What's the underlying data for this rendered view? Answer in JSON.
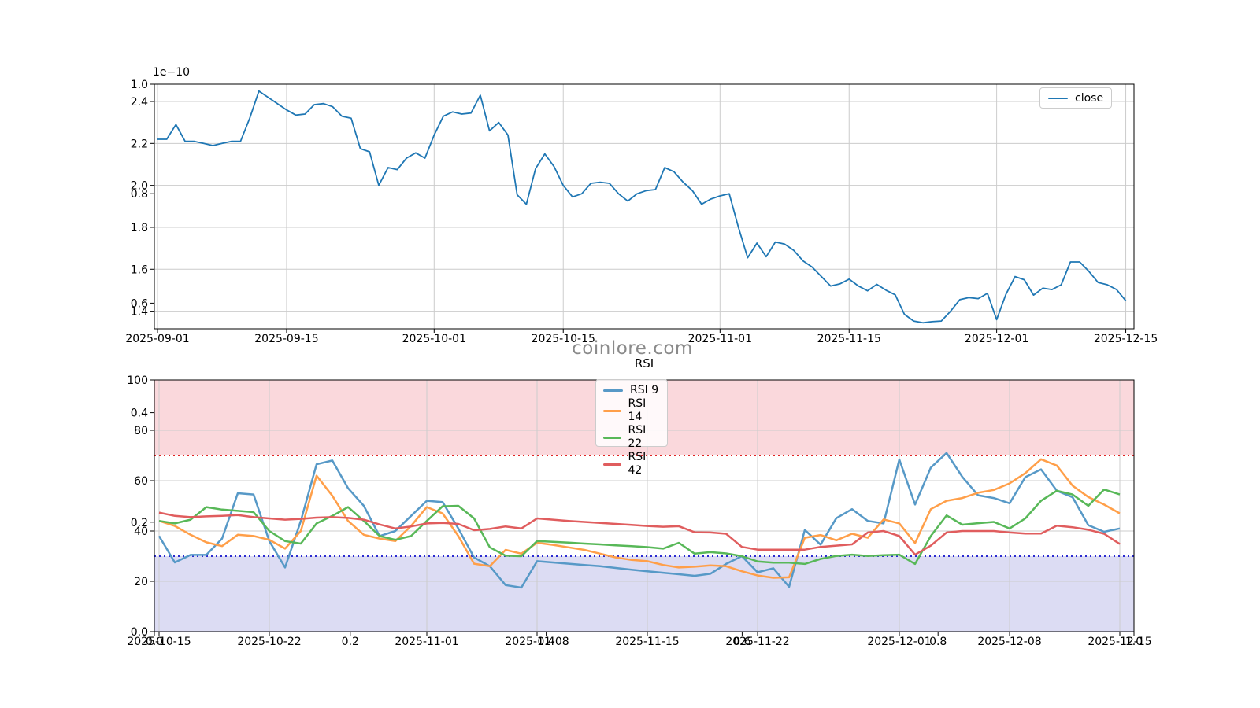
{
  "watermark": "coinlore.com",
  "overlay_axis": {
    "x_tick_labels": [
      "0.0",
      "0.2",
      "0.4",
      "0.6",
      "0.8",
      "1.0"
    ],
    "y_tick_labels": [
      "0.0",
      "0.2",
      "0.4",
      "0.6",
      "0.8",
      "1.0"
    ]
  },
  "chart_data": [
    {
      "type": "line",
      "title": "",
      "offset_text": "1e−10",
      "value_scale": "1e-10",
      "start_date": "2025-09-01",
      "frequency": "daily",
      "grid": true,
      "legend_position": "upper right",
      "ylim": [
        1.316,
        2.4825
      ],
      "ytick_values": [
        1.4,
        1.6,
        1.8,
        2.0,
        2.2,
        2.4
      ],
      "ytick_labels": [
        "1.4",
        "1.6",
        "1.8",
        "2.0",
        "2.2",
        "2.4"
      ],
      "xticks": [
        {
          "label": "2025-09-01",
          "day": 0
        },
        {
          "label": "2025-09-15",
          "day": 14
        },
        {
          "label": "2025-10-01",
          "day": 30
        },
        {
          "label": "2025-10-15",
          "day": 44
        },
        {
          "label": "2025-11-01",
          "day": 61
        },
        {
          "label": "2025-11-15",
          "day": 75
        },
        {
          "label": "2025-12-01",
          "day": 91
        },
        {
          "label": "2025-12-15",
          "day": 105
        }
      ],
      "series": [
        {
          "name": "close",
          "color": "#1f77b4",
          "line_width": 1.8,
          "values": [
            2.22,
            2.22,
            2.29,
            2.21,
            2.21,
            2.2,
            2.19,
            2.2,
            2.21,
            2.21,
            2.32,
            2.45,
            2.42,
            2.39,
            2.36,
            2.335,
            2.34,
            2.385,
            2.39,
            2.375,
            2.33,
            2.32,
            2.175,
            2.16,
            2.0,
            2.085,
            2.075,
            2.13,
            2.155,
            2.13,
            2.24,
            2.33,
            2.35,
            2.34,
            2.345,
            2.43,
            2.26,
            2.3,
            2.24,
            1.955,
            1.91,
            2.08,
            2.15,
            2.09,
            2.0,
            1.945,
            1.96,
            2.01,
            2.015,
            2.01,
            1.96,
            1.925,
            1.96,
            1.975,
            1.98,
            2.085,
            2.065,
            2.015,
            1.975,
            1.91,
            1.935,
            1.95,
            1.96,
            1.8,
            1.655,
            1.725,
            1.66,
            1.73,
            1.72,
            1.69,
            1.64,
            1.61,
            1.565,
            1.52,
            1.53,
            1.553,
            1.52,
            1.497,
            1.528,
            1.5,
            1.478,
            1.385,
            1.353,
            1.345,
            1.35,
            1.353,
            1.4,
            1.455,
            1.465,
            1.46,
            1.485,
            1.36,
            1.48,
            1.565,
            1.55,
            1.477,
            1.51,
            1.503,
            1.526,
            1.635,
            1.635,
            1.59,
            1.537,
            1.526,
            1.503,
            1.45
          ]
        }
      ]
    },
    {
      "type": "line",
      "title": "RSI",
      "start_date": "2025-10-15",
      "frequency": "daily",
      "grid": true,
      "legend_position": "upper center",
      "ylim": [
        0,
        100
      ],
      "ytick_values": [
        0,
        20,
        40,
        60,
        80,
        100
      ],
      "ytick_labels": [
        "0",
        "20",
        "40",
        "60",
        "80",
        "100"
      ],
      "xticks": [
        {
          "label": "2025-10-15",
          "day": 0
        },
        {
          "label": "2025-10-22",
          "day": 7
        },
        {
          "label": "2025-11-01",
          "day": 17
        },
        {
          "label": "2025-11-08",
          "day": 24
        },
        {
          "label": "2025-11-15",
          "day": 31
        },
        {
          "label": "2025-11-22",
          "day": 38
        },
        {
          "label": "2025-12-01",
          "day": 47
        },
        {
          "label": "2025-12-08",
          "day": 54
        },
        {
          "label": "2025-12-15",
          "day": 61
        }
      ],
      "bands": [
        {
          "from": 70,
          "to": 100,
          "color": "#fad8dc",
          "meaning": "overbought"
        },
        {
          "from": 0,
          "to": 30,
          "color": "#dcdcf3",
          "meaning": "oversold"
        }
      ],
      "hlines": [
        {
          "y": 70,
          "color": "#e02424",
          "style": "dotted"
        },
        {
          "y": 30,
          "color": "#2a2ad0",
          "style": "dotted"
        }
      ],
      "series": [
        {
          "name": "RSI 9",
          "color": "#5799c7",
          "line_width": 2.5,
          "values": [
            38,
            27.5,
            30.5,
            30.5,
            37,
            55,
            54.5,
            36,
            25.5,
            44,
            66.5,
            68,
            57,
            50,
            38,
            40,
            46,
            52,
            51.5,
            41,
            29.5,
            26,
            18.5,
            17.5,
            28,
            27.5,
            27,
            26.5,
            26,
            25.3,
            24.6,
            24,
            23.4,
            22.8,
            22.2,
            23,
            26.9,
            30,
            23.6,
            25.2,
            17.8,
            40.4,
            34.6,
            45.1,
            48.7,
            44,
            43,
            68.4,
            50.5,
            65.2,
            71,
            61.5,
            54.2,
            53.1,
            51,
            61.4,
            64.5,
            56,
            53.4,
            42.3,
            39.7,
            41
          ]
        },
        {
          "name": "RSI 14",
          "color": "#ff9f49",
          "line_width": 2.5,
          "values": [
            44,
            42,
            38.5,
            35.5,
            34,
            38.5,
            38,
            36.5,
            33,
            40,
            62,
            54,
            44,
            38.5,
            37,
            36,
            42,
            49.5,
            47,
            38,
            27,
            26,
            32.5,
            31,
            35.3,
            34.5,
            33.5,
            32.5,
            31,
            29.5,
            28.5,
            28,
            26.5,
            25.5,
            25.8,
            26.3,
            26,
            24,
            22.3,
            21.4,
            21.6,
            37.3,
            38.4,
            36.3,
            38.9,
            37.3,
            44.6,
            43,
            35.2,
            48.7,
            52,
            53.1,
            55.2,
            56.3,
            58.9,
            63,
            68.5,
            66,
            58,
            53.5,
            50.5,
            47
          ]
        },
        {
          "name": "RSI 22",
          "color": "#58b858",
          "line_width": 2.5,
          "values": [
            44,
            43,
            44.5,
            49.5,
            48.5,
            48,
            47.5,
            40,
            36,
            35,
            43,
            46,
            49.5,
            44,
            38,
            36.5,
            38,
            44,
            49.8,
            50,
            45,
            33.5,
            30.2,
            30,
            36,
            35.7,
            35.4,
            35,
            34.7,
            34.3,
            34,
            33.6,
            33,
            35.3,
            31,
            31.6,
            31.1,
            30,
            27.9,
            27.4,
            27.4,
            26.9,
            28.9,
            30.1,
            30.6,
            30.1,
            30.4,
            30.6,
            26.9,
            38,
            46.2,
            42.5,
            43.1,
            43.6,
            41,
            45,
            52,
            56,
            54.5,
            50,
            56.5,
            54.5
          ]
        },
        {
          "name": "RSI 42",
          "color": "#e05d5e",
          "line_width": 2.5,
          "values": [
            47.3,
            46,
            45.5,
            45.8,
            46,
            46.3,
            45.5,
            45,
            44.5,
            44.8,
            45.3,
            45.5,
            45.2,
            44.5,
            42.6,
            41,
            41.8,
            43,
            43.2,
            42.8,
            40.3,
            40.8,
            41.8,
            41,
            45,
            44.5,
            44,
            43.6,
            43.2,
            42.8,
            42.4,
            42,
            41.7,
            41.9,
            39.5,
            39.4,
            38.9,
            33.7,
            32.6,
            32.6,
            32.6,
            32.6,
            33.7,
            34.2,
            34.7,
            39.4,
            40,
            38,
            30.6,
            34.2,
            39.4,
            40,
            40,
            40,
            39.4,
            39,
            39,
            42.1,
            41.5,
            40.5,
            38.9,
            34.8
          ]
        }
      ]
    }
  ]
}
